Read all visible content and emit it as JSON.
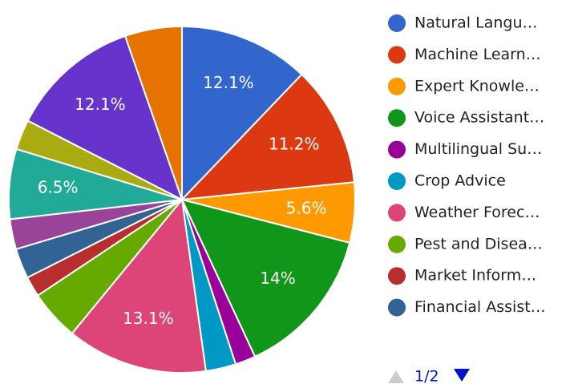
{
  "chart_data": {
    "type": "pie",
    "categories": [
      "Natural Langu…",
      "Machine Learn…",
      "Expert Knowle…",
      "Voice Assistant…",
      "Multilingual Su…",
      "Crop Advice",
      "Weather Forec…",
      "Pest and Disea…",
      "Market Inform…",
      "Financial Assist…",
      null,
      null,
      null,
      null,
      null
    ],
    "values": [
      12.1,
      11.2,
      5.6,
      14,
      1.9,
      2.8,
      13.1,
      4.7,
      1.9,
      2.8,
      2.8,
      6.5,
      2.8,
      12.1,
      5.3
    ],
    "value_labels": [
      "12.1%",
      "11.2%",
      "5.6%",
      "14%",
      null,
      null,
      "13.1%",
      null,
      null,
      null,
      null,
      "6.5%",
      null,
      "12.1%",
      null
    ],
    "colors": [
      "#3366cc",
      "#dc3912",
      "#ff9900",
      "#109618",
      "#990099",
      "#0099c6",
      "#dd4477",
      "#66aa00",
      "#b82e2e",
      "#316395",
      "#994499",
      "#22aa99",
      "#aaaa11",
      "#6633cc",
      "#e67300"
    ],
    "legend": "right",
    "legend_page": "1/2"
  }
}
